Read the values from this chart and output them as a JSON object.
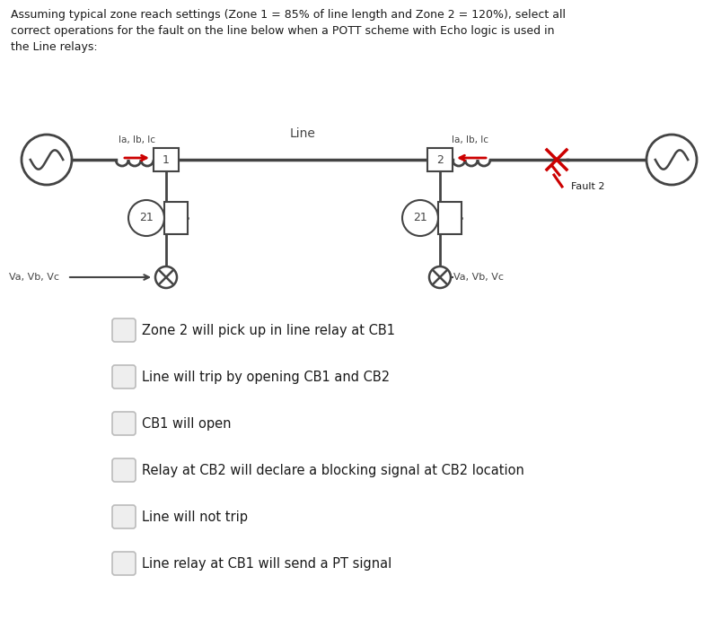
{
  "title_text": "Assuming typical zone reach settings (Zone 1 = 85% of line length and Zone 2 = 120%), select all\ncorrect operations for the fault on the line below when a POTT scheme with Echo logic is used in\nthe Line relays:",
  "background_color": "#ffffff",
  "text_color": "#1a1a1a",
  "diagram_line_color": "#444444",
  "fault_color": "#cc0000",
  "arrow_color": "#cc0000",
  "line_label": "Line",
  "fault_label": "Fault 2",
  "cb1_label": "1",
  "cb2_label": "2",
  "relay_label": "21",
  "current_label": "Ia, Ib, Ic",
  "voltage_label": "Va, Vb, Vc",
  "options": [
    "Zone 2 will pick up in line relay at CB1",
    "Line will trip by opening CB1 and CB2",
    "CB1 will open",
    "Relay at CB2 will declare a blocking signal at CB2 location",
    "Line will not trip",
    "Line relay at CB1 will send a PT signal"
  ],
  "option_fontsize": 10.5,
  "title_fontsize": 9.0,
  "diag_scale": 1.0
}
